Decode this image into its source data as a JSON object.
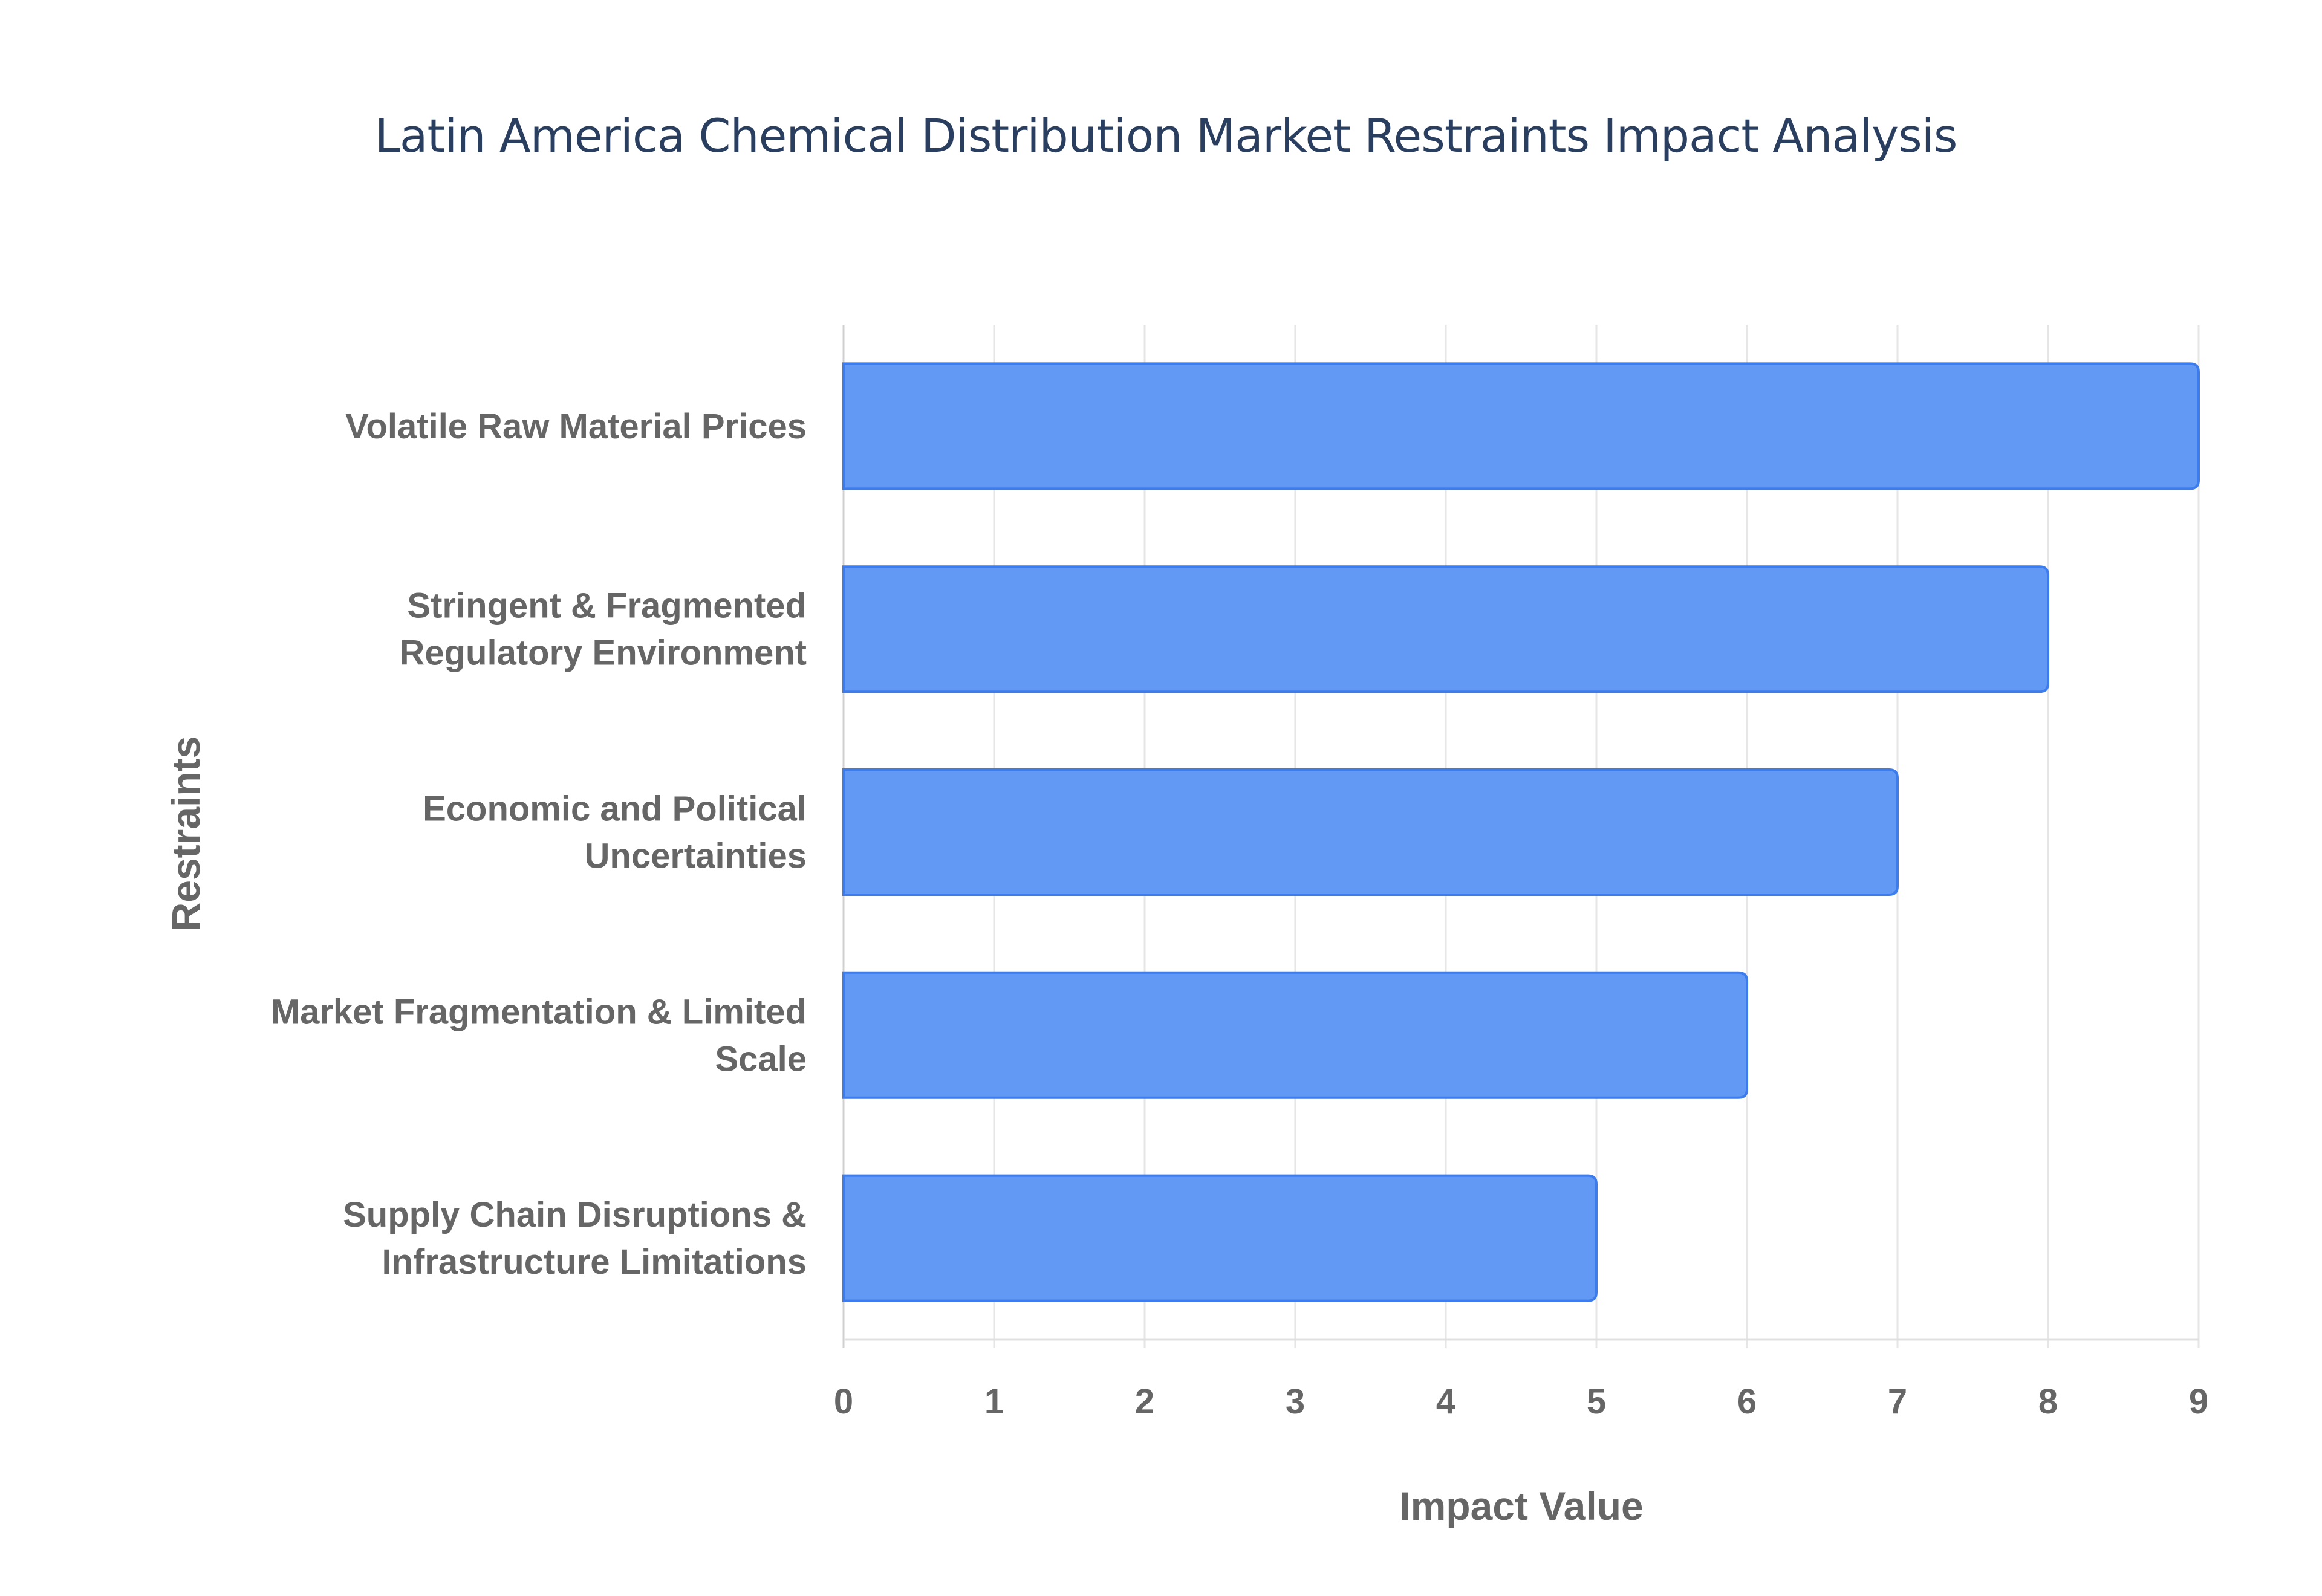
{
  "chart_data": {
    "type": "bar",
    "orientation": "horizontal",
    "title": "Latin America Chemical Distribution Market Restraints Impact Analysis",
    "xlabel": "Impact Value",
    "ylabel": "Restraints",
    "categories": [
      "Volatile Raw Material Prices",
      "Stringent & Fragmented Regulatory Environment",
      "Economic and Political Uncertainties",
      "Market Fragmentation & Limited Scale",
      "Supply Chain Disruptions & Infrastructure Limitations"
    ],
    "category_lines": [
      [
        "Volatile Raw Material Prices"
      ],
      [
        "Stringent & Fragmented",
        "Regulatory Environment"
      ],
      [
        "Economic and Political",
        "Uncertainties"
      ],
      [
        "Market Fragmentation & Limited",
        "Scale"
      ],
      [
        "Supply Chain Disruptions &",
        "Infrastructure Limitations"
      ]
    ],
    "values": [
      9,
      8,
      7,
      6,
      5
    ],
    "xlim": [
      0,
      9
    ],
    "xticks": [
      "0",
      "1",
      "2",
      "3",
      "4",
      "5",
      "6",
      "7",
      "8",
      "9"
    ],
    "grid": true,
    "bar_color": "#6299f5",
    "bar_border_color": "#3d7cec"
  }
}
